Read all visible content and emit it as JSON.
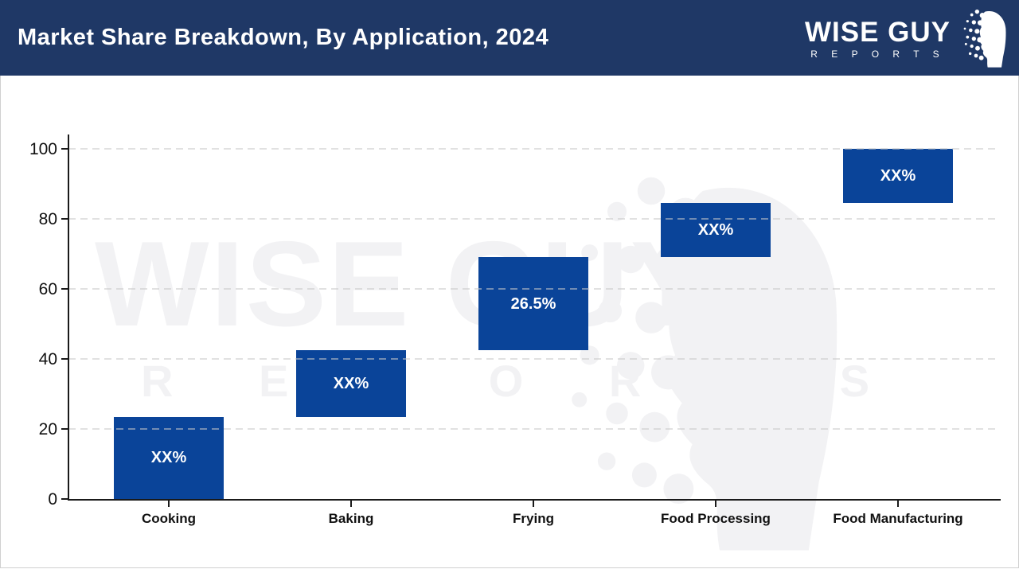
{
  "header": {
    "title": "Market Share Breakdown, By Application, 2024",
    "background_color": "#1f3866",
    "title_color": "#ffffff",
    "logo": {
      "line1": "WISE GUY",
      "line2": "R E P O R T S"
    }
  },
  "watermark": {
    "line1": "WISE GUY",
    "line2": "R E P O R T S"
  },
  "chart_data": {
    "type": "bar",
    "subtype": "waterfall",
    "title": "Market Share Breakdown, By Application, 2024",
    "categories": [
      "Cooking",
      "Baking",
      "Frying",
      "Food Processing",
      "Food Manufacturing"
    ],
    "values": [
      23.5,
      19,
      26.5,
      15.5,
      15.5
    ],
    "cumulative_start": [
      0,
      23.5,
      42.5,
      69,
      84.5
    ],
    "cumulative_end": [
      23.5,
      42.5,
      69,
      84.5,
      100
    ],
    "bar_labels": [
      "XX%",
      "XX%",
      "26.5%",
      "XX%",
      "XX%"
    ],
    "xlabel": "",
    "ylabel": "",
    "ylim": [
      0,
      104
    ],
    "yticks": [
      0,
      20,
      40,
      60,
      80,
      100
    ],
    "grid": "horizontal-dashed",
    "legend": "none",
    "bar_color": "#0a4499",
    "grid_color": "#d9d9d9",
    "axis_color": "#1a1a1a",
    "bar_label_color": "#ffffff"
  }
}
